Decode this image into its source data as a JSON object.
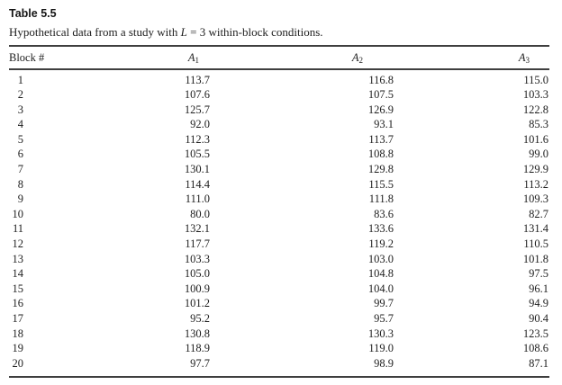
{
  "page": {
    "background": "#ffffff",
    "text_color": "#1e1e1e",
    "rule_color": "#3f3f3f"
  },
  "table": {
    "title": "Table 5.5",
    "caption": {
      "pre": "Hypothetical data from a study with ",
      "var": "L",
      "post": " = 3 within-block conditions."
    },
    "columns": {
      "block": "Block #",
      "conditions": [
        {
          "base": "A",
          "sub": "1"
        },
        {
          "base": "A",
          "sub": "2"
        },
        {
          "base": "A",
          "sub": "3"
        }
      ]
    },
    "rows": [
      {
        "block": "1",
        "a1": "113.7",
        "a2": "116.8",
        "a3": "115.0"
      },
      {
        "block": "2",
        "a1": "107.6",
        "a2": "107.5",
        "a3": "103.3"
      },
      {
        "block": "3",
        "a1": "125.7",
        "a2": "126.9",
        "a3": "122.8"
      },
      {
        "block": "4",
        "a1": "92.0",
        "a2": "93.1",
        "a3": "85.3"
      },
      {
        "block": "5",
        "a1": "112.3",
        "a2": "113.7",
        "a3": "101.6"
      },
      {
        "block": "6",
        "a1": "105.5",
        "a2": "108.8",
        "a3": "99.0"
      },
      {
        "block": "7",
        "a1": "130.1",
        "a2": "129.8",
        "a3": "129.9"
      },
      {
        "block": "8",
        "a1": "114.4",
        "a2": "115.5",
        "a3": "113.2"
      },
      {
        "block": "9",
        "a1": "111.0",
        "a2": "111.8",
        "a3": "109.3"
      },
      {
        "block": "10",
        "a1": "80.0",
        "a2": "83.6",
        "a3": "82.7"
      },
      {
        "block": "11",
        "a1": "132.1",
        "a2": "133.6",
        "a3": "131.4"
      },
      {
        "block": "12",
        "a1": "117.7",
        "a2": "119.2",
        "a3": "110.5"
      },
      {
        "block": "13",
        "a1": "103.3",
        "a2": "103.0",
        "a3": "101.8"
      },
      {
        "block": "14",
        "a1": "105.0",
        "a2": "104.8",
        "a3": "97.5"
      },
      {
        "block": "15",
        "a1": "100.9",
        "a2": "104.0",
        "a3": "96.1"
      },
      {
        "block": "16",
        "a1": "101.2",
        "a2": "99.7",
        "a3": "94.9"
      },
      {
        "block": "17",
        "a1": "95.2",
        "a2": "95.7",
        "a3": "90.4"
      },
      {
        "block": "18",
        "a1": "130.8",
        "a2": "130.3",
        "a3": "123.5"
      },
      {
        "block": "19",
        "a1": "118.9",
        "a2": "119.0",
        "a3": "108.6"
      },
      {
        "block": "20",
        "a1": "97.7",
        "a2": "98.9",
        "a3": "87.1"
      }
    ]
  }
}
